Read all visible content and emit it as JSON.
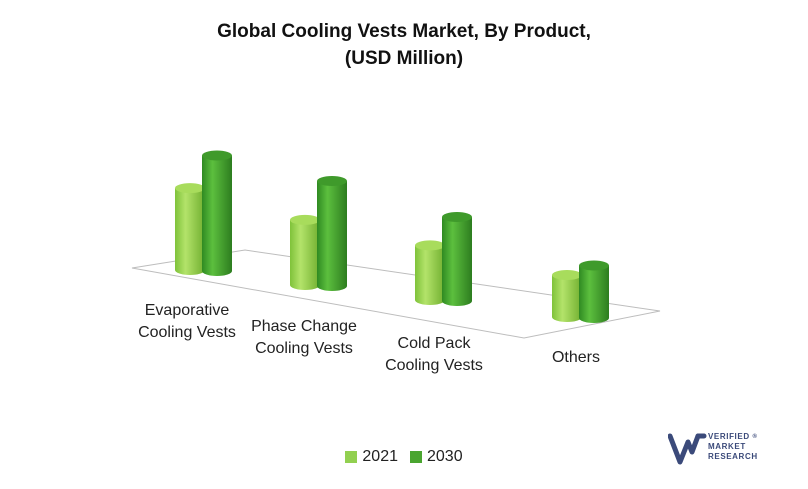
{
  "chart_data": {
    "type": "bar",
    "title": "Global Cooling Vests Market, By Product,",
    "subtitle": "(USD Million)",
    "categories": [
      "Evaporative Cooling Vests",
      "Phase Change Cooling Vests",
      "Cold Pack Cooling Vests",
      "Others"
    ],
    "category_label_lines": [
      [
        "Evaporative",
        "Cooling Vests"
      ],
      [
        "Phase Change",
        "Cooling Vests"
      ],
      [
        "Cold Pack",
        "Cooling Vests"
      ],
      [
        "Others"
      ]
    ],
    "series": [
      {
        "name": "2021",
        "values": [
          78,
          62,
          52,
          40
        ],
        "color": "#92d050"
      },
      {
        "name": "2030",
        "values": [
          110,
          100,
          80,
          50
        ],
        "color": "#4aa530"
      }
    ],
    "ylim": [
      0,
      120
    ],
    "grid": false,
    "legend_position": "bottom",
    "style": "3d-cylinder"
  },
  "legend": {
    "label_2021": "2021",
    "label_2030": "2030"
  },
  "logo": {
    "line1": "VERIFIED",
    "line2": "MARKET",
    "line3": "RESEARCH",
    "mark": "®"
  }
}
